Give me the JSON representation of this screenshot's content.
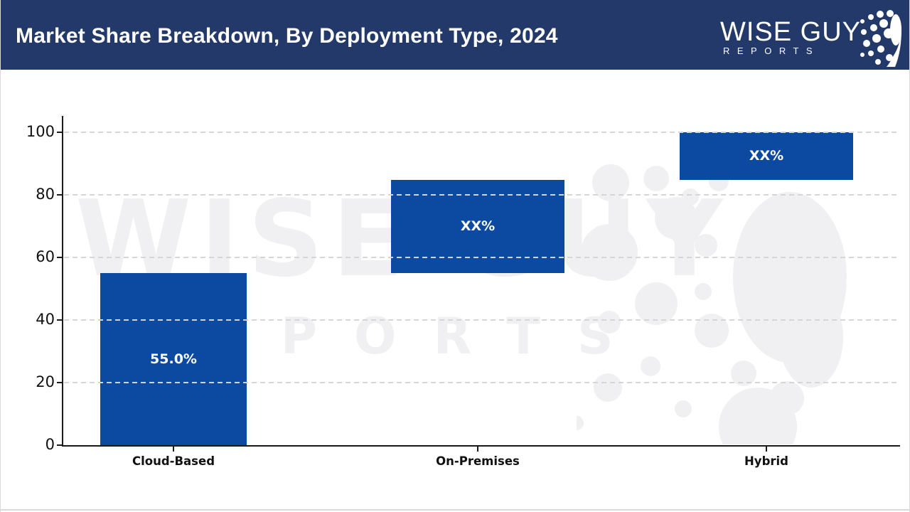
{
  "header": {
    "title": "Market Share Breakdown, By Deployment Type, 2024",
    "brand": {
      "name_top": "WISE GUY",
      "name_bottom": "REPORTS"
    }
  },
  "watermark": {
    "line1": "WISE GUY",
    "line2": "REPORTS"
  },
  "chart_data": {
    "type": "bar",
    "subtype": "waterfall-breakdown",
    "title": "Market Share Breakdown, By Deployment Type, 2024",
    "categories": [
      "Cloud-Based",
      "On-Premises",
      "Hybrid"
    ],
    "series": [
      {
        "name": "Market share (%)",
        "segments": [
          {
            "category": "Cloud-Based",
            "start": 0,
            "end": 55,
            "label": "55.0%"
          },
          {
            "category": "On-Premises",
            "start": 55,
            "end": 84.8,
            "label": "XX%"
          },
          {
            "category": "Hybrid",
            "start": 84.8,
            "end": 100,
            "label": "XX%"
          }
        ]
      }
    ],
    "xlabel": "",
    "ylabel": "",
    "ylim": [
      0,
      100
    ],
    "yticks": [
      0,
      20,
      40,
      60,
      80,
      100
    ],
    "grid": true,
    "grid_style": "dashed",
    "legend": "none",
    "colors": {
      "bar": "#0c4aa2",
      "bar_label": "#ffffff",
      "header_bg": "#22396a",
      "grid": "#d6d6d6",
      "axis": "#1a1a1a",
      "watermark": "#f0f0f2"
    }
  }
}
